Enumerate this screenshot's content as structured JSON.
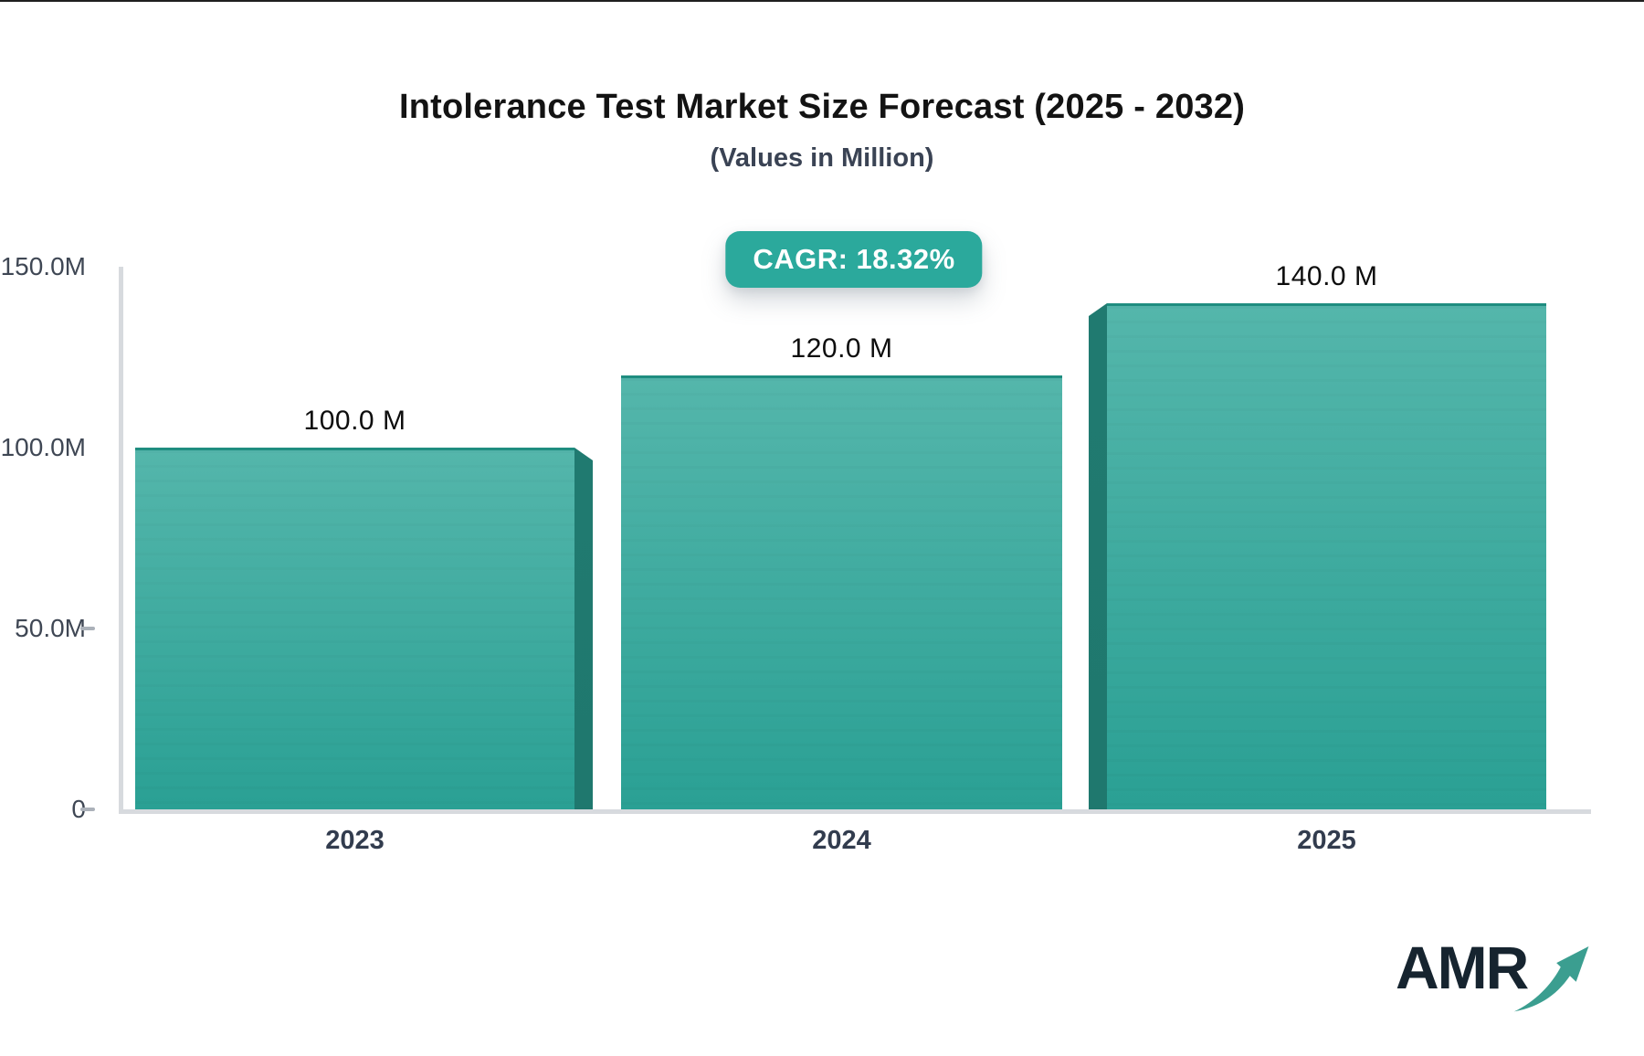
{
  "page": {
    "title": "Intolerance Test Market Size Forecast (2025 - 2032)",
    "subtitle": "(Values in Million)"
  },
  "badge": {
    "label": "CAGR: 18.32%"
  },
  "chart_data": {
    "type": "bar",
    "title": "Intolerance Test Market Size Forecast (2025 - 2032)",
    "subtitle": "(Values in Million)",
    "annotation": "CAGR: 18.32%",
    "categories": [
      "2023",
      "2024",
      "2025"
    ],
    "values": [
      100,
      120,
      140
    ],
    "value_labels": [
      "100.0 M",
      "120.0 M",
      "140.0 M"
    ],
    "xlabel": "",
    "ylabel": "",
    "ylim": [
      0,
      150
    ],
    "yticks": [
      {
        "value": 150,
        "label": "150.0M",
        "dash": false
      },
      {
        "value": 100,
        "label": "100.0M",
        "dash": false
      },
      {
        "value": 50,
        "label": "50.0M",
        "dash": true
      },
      {
        "value": 0,
        "label": "0",
        "dash": true
      }
    ],
    "grid": false,
    "legend": false,
    "style": "3d-extruded-bars"
  },
  "logo": {
    "text": "AMR"
  },
  "colors": {
    "title": "#131313",
    "subtitle": "#3a4354",
    "badge": "#2ba99c",
    "bartop": "#54b6ab",
    "barbot": "#2aa094",
    "barside": "#207a70",
    "baredge": "#1f8d80",
    "axis": "#d7dade",
    "ticktext": "#3f4754",
    "xtext": "#323c4e",
    "logonavy": "#16242f",
    "logoteal": "#3b9e90",
    "edge": "#1f1f1f"
  }
}
